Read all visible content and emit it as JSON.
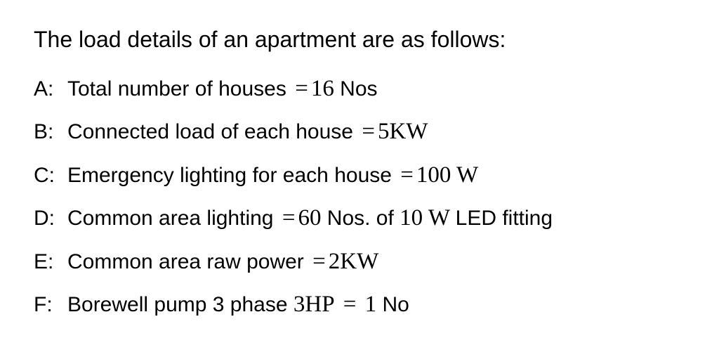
{
  "heading": "The load details of an apartment are as follows:",
  "items": [
    {
      "letter": "A:",
      "prefix": "Total number of houses ",
      "eq": "=",
      "value": "16",
      "unit": " Nos",
      "suffix": ""
    },
    {
      "letter": "B:",
      "prefix": "Connected load of each house ",
      "eq": "=",
      "value": "5",
      "unit": "KW",
      "suffix": ""
    },
    {
      "letter": "C:",
      "prefix": "Emergency lighting for each house ",
      "eq": "=",
      "value": "100",
      "unit": " W",
      "suffix": ""
    },
    {
      "letter": "D:",
      "prefix": "Common area lighting ",
      "eq": "=",
      "value": "60",
      "unit": " Nos. of ",
      "suffix": "",
      "value2": "10",
      "unit2": " W ",
      "suffix2": "LED fitting"
    },
    {
      "letter": "E:",
      "prefix": "Common area raw power ",
      "eq": "=",
      "value": "2",
      "unit": "KW",
      "suffix": ""
    },
    {
      "letter": "F:",
      "prefix": "Borewell pump 3 phase ",
      "eq": "",
      "value": "3",
      "unit": "HP",
      "suffix": "",
      "eq2": " = ",
      "value2": "1",
      "unit2": "",
      "suffix2": " No"
    }
  ]
}
